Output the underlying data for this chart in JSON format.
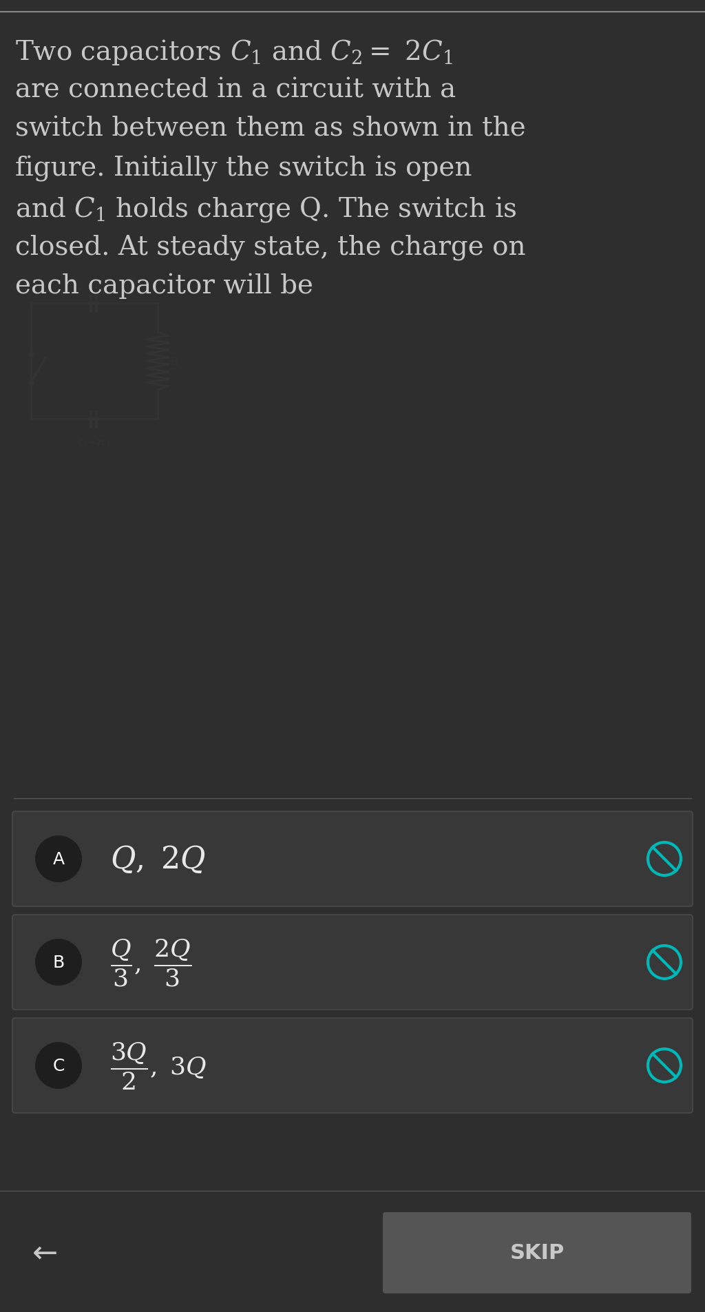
{
  "bg_color": "#2e2e2e",
  "top_line_color": "#888888",
  "text_color": "#c8c8c8",
  "question_text_lines": [
    "Two capacitors $C_1$ and $C_2=\\ 2C_1$",
    "are connected in a circuit with a",
    "switch between them as shown in the",
    "figure. Initially the switch is open",
    "and $C_1$ holds charge Q. The switch is",
    "closed. At steady state, the charge on",
    "each capacitor will be"
  ],
  "circuit_box_bg": "#d4d4d4",
  "option_bg_color": "#383838",
  "option_border_color": "#4a4a4a",
  "option_label_bg": "#1e1e1e",
  "option_text_color": "#e8e8e8",
  "icon_color": "#00b8b8",
  "skip_bg": "#555555",
  "skip_text": "SKIP",
  "back_arrow": "←",
  "separator_color": "#555555",
  "circuit_color": "#333333",
  "option_configs": [
    {
      "label": "A",
      "math": "$Q,\\ 2Q$",
      "fontsize": 32
    },
    {
      "label": "B",
      "math": "$\\dfrac{Q}{3},\\ \\dfrac{2Q}{3}$",
      "fontsize": 26
    },
    {
      "label": "C",
      "math": "$\\dfrac{3Q}{2},\\ 3Q$",
      "fontsize": 26
    }
  ]
}
